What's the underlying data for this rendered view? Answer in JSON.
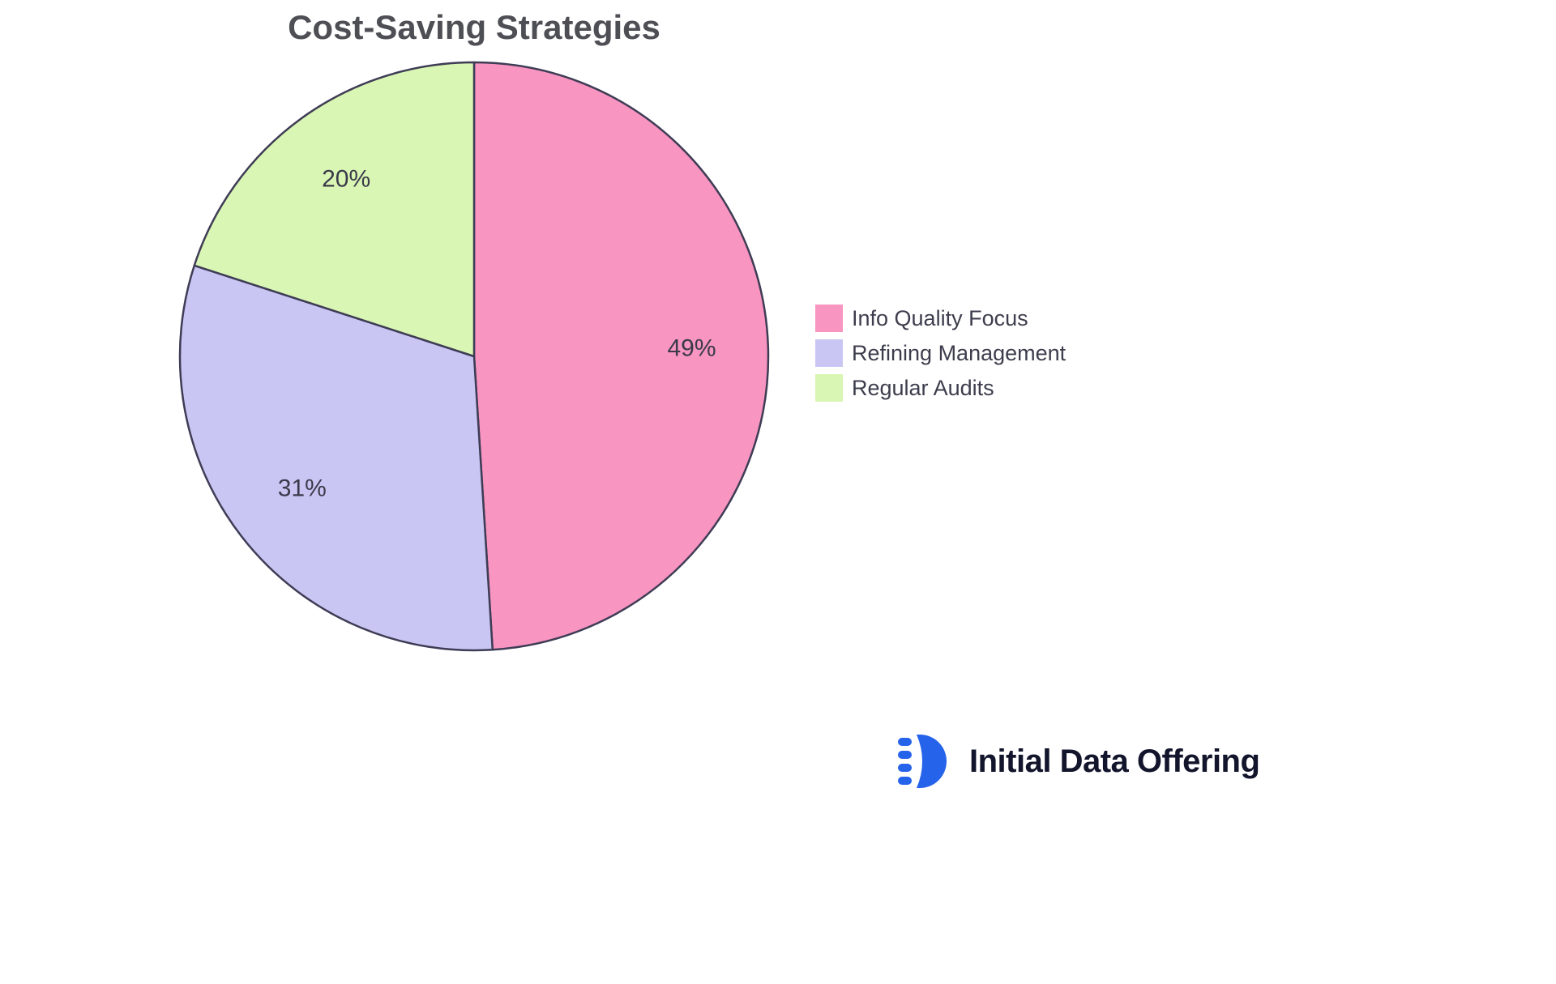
{
  "chart_data": {
    "type": "pie",
    "title": "Cost-Saving Strategies",
    "slices": [
      {
        "label": "Info Quality Focus",
        "value": 49,
        "pct_label": "49%",
        "color": "#F895C1"
      },
      {
        "label": "Refining Management",
        "value": 31,
        "pct_label": "31%",
        "color": "#C9C6F4"
      },
      {
        "label": "Regular Audits",
        "value": 20,
        "pct_label": "20%",
        "color": "#D9F6B4"
      }
    ],
    "start_angle_deg": -90,
    "direction": "clockwise",
    "stroke_color": "#3F3C55",
    "legend_position": "right",
    "grid": false
  },
  "branding": {
    "logo_text": "Initial Data Offering",
    "logo_color": "#2563EB"
  }
}
